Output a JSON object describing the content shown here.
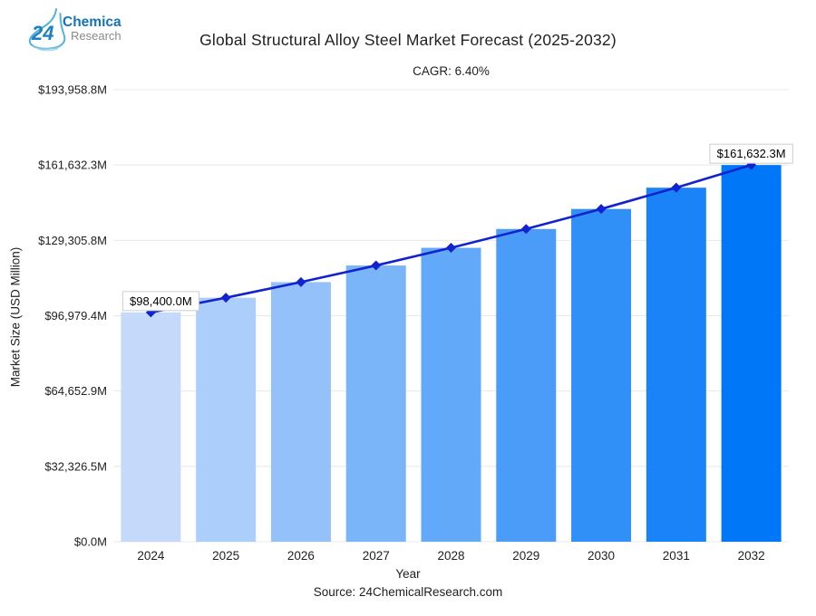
{
  "brand": {
    "number": "24",
    "name_top": "Chemical",
    "name_bottom": "Research"
  },
  "chart_data": {
    "type": "bar",
    "overlay": "line",
    "title": "Global Structural Alloy Steel Market Forecast (2025-2032)",
    "subtitle": "CAGR: 6.40%",
    "xlabel": "Year",
    "ylabel": "Market Size (USD Million)",
    "source": "Source: 24ChemicalResearch.com",
    "categories": [
      "2024",
      "2025",
      "2026",
      "2027",
      "2028",
      "2029",
      "2030",
      "2031",
      "2032"
    ],
    "values": [
      98400.0,
      104697.6,
      111398.2,
      118527.7,
      126113.5,
      134184.8,
      142772.6,
      151910.0,
      161632.3
    ],
    "ylim": [
      0,
      193958.8
    ],
    "yticks": [
      0,
      32326.5,
      64652.9,
      96979.4,
      129305.8,
      161632.3,
      193958.8
    ],
    "ytick_labels": [
      "$0.0M",
      "$32,326.5M",
      "$64,652.9M",
      "$96,979.4M",
      "$129,305.8M",
      "$161,632.3M",
      "$193,958.8M"
    ],
    "annotations": [
      {
        "index": 0,
        "label": "$98,400.0M",
        "align": "bar-left"
      },
      {
        "index": 8,
        "label": "$161,632.3M",
        "align": "center"
      }
    ],
    "grid": true,
    "legend": null,
    "colors": {
      "bar_start": "#c5dafb",
      "bar_end": "#0077f6",
      "line": "#1023cf",
      "grid": "#e8e8e8",
      "annotation_border": "#cccccc",
      "annotation_bg": "#ffffff",
      "text": "#212121"
    }
  }
}
